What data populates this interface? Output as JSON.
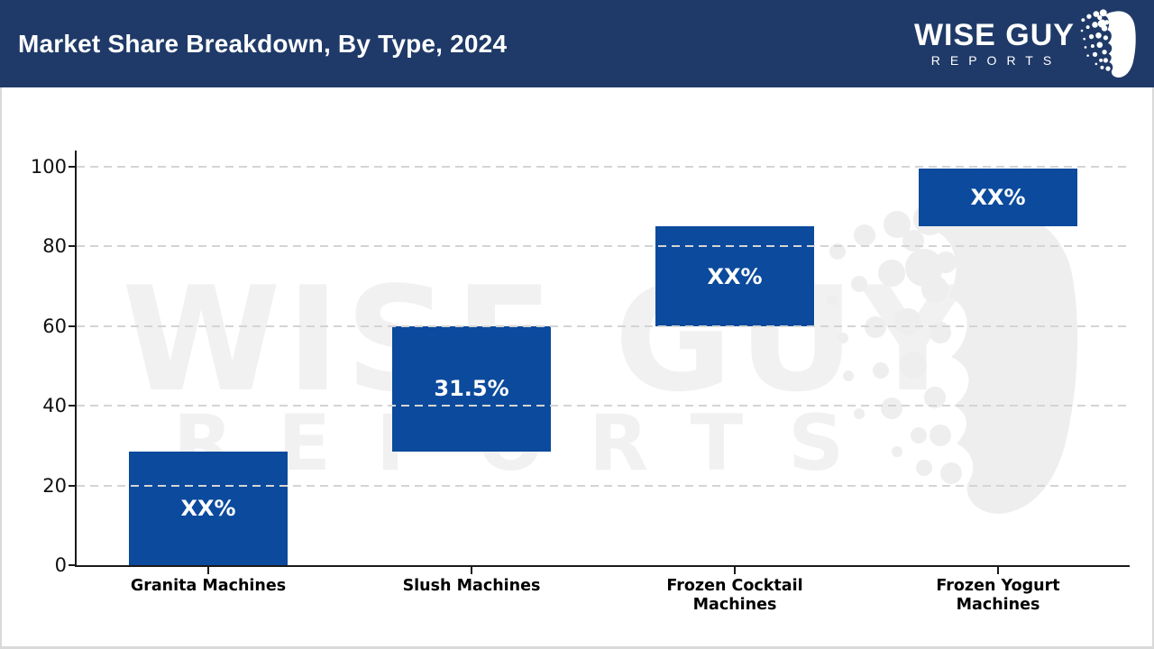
{
  "header": {
    "title": "Market Share Breakdown, By Type, 2024",
    "bg_color": "#1f3a68",
    "logo": {
      "line1": "WISE GUY",
      "line2": "REPORTS"
    }
  },
  "watermark": {
    "line1": "WISE GUY",
    "line2": "REPORTS"
  },
  "chart_data": {
    "type": "bar",
    "subtype": "waterfall",
    "title": "Market Share Breakdown, By Type, 2024",
    "categories": [
      "Granita Machines",
      "Slush Machines",
      "Frozen Cocktail\nMachines",
      "Frozen Yogurt\nMachines"
    ],
    "segments": [
      {
        "category": "Granita Machines",
        "start": 0,
        "end": 28.5,
        "label": "XX%"
      },
      {
        "category": "Slush Machines",
        "start": 28.5,
        "end": 60,
        "label": "31.5%"
      },
      {
        "category": "Frozen Cocktail Machines",
        "start": 60,
        "end": 85,
        "label": "XX%"
      },
      {
        "category": "Frozen Yogurt Machines",
        "start": 85,
        "end": 99.5,
        "label": "XX%"
      }
    ],
    "bar_color": "#0b4a9c",
    "label_color_on_bar": "#ffffff",
    "ylim": [
      0,
      100
    ],
    "yticks": [
      0,
      20,
      40,
      60,
      80,
      100
    ],
    "grid": {
      "horizontal": true,
      "style": "dashed",
      "color": "#d4d4d4"
    },
    "axis_color": "#1a1a1a",
    "legend": "none"
  }
}
